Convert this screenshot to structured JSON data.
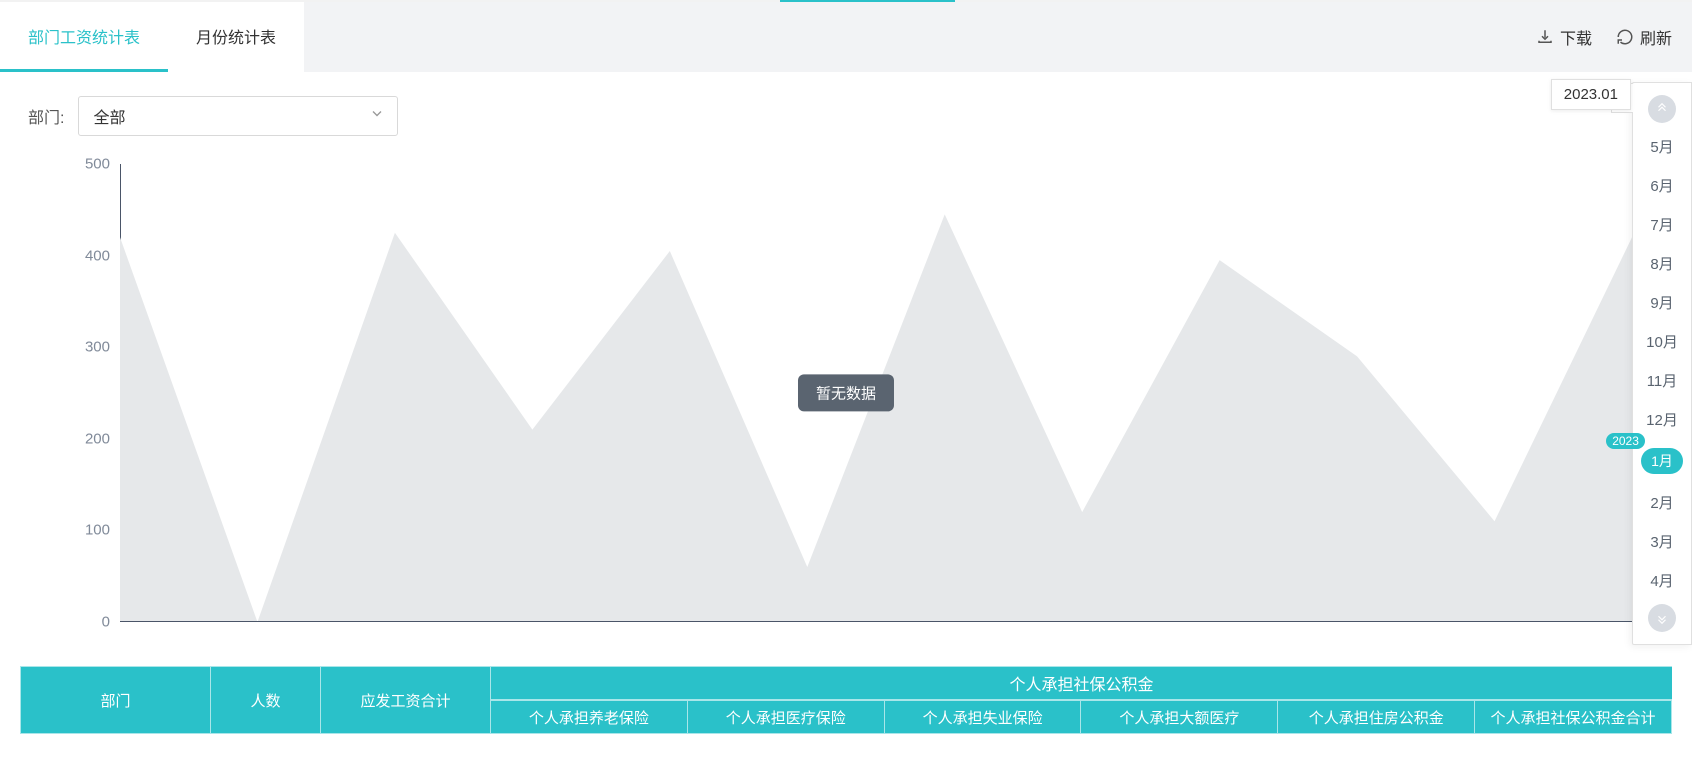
{
  "accent_color": "#2ac1c9",
  "tabs": {
    "items": [
      "部门工资统计表",
      "月份统计表"
    ],
    "active_index": 0
  },
  "actions": {
    "download": "下载",
    "refresh": "刷新"
  },
  "filter": {
    "label": "部门:",
    "select_value": "全部"
  },
  "chart": {
    "type": "area",
    "no_data_label": "暂无数据",
    "y": {
      "min": 0,
      "max": 500,
      "step": 100,
      "ticks": [
        0,
        100,
        200,
        300,
        400,
        500
      ]
    },
    "fill_color": "#e6e8ea",
    "axis_color": "#4a5568",
    "tick_color": "#808a99",
    "tick_fontsize": 15,
    "series_values": [
      420,
      0,
      425,
      210,
      405,
      60,
      445,
      120,
      395,
      290,
      110,
      420
    ],
    "background_color": "#ffffff"
  },
  "table": {
    "header_bg": "#2ac1c9",
    "header_fg": "#ffffff",
    "columns_fixed": [
      "部门",
      "人数",
      "应发工资合计"
    ],
    "group_label": "个人承担社保公积金",
    "group_columns": [
      "个人承担养老保险",
      "个人承担医疗保险",
      "个人承担失业保险",
      "个人承担大额医疗",
      "个人承担住房公积金",
      "个人承担社保公积金合计"
    ]
  },
  "timeline": {
    "current_label": "2023.01",
    "year_tag": "2023",
    "items": [
      {
        "label": "5月",
        "active": false
      },
      {
        "label": "6月",
        "active": false
      },
      {
        "label": "7月",
        "active": false
      },
      {
        "label": "8月",
        "active": false
      },
      {
        "label": "9月",
        "active": false
      },
      {
        "label": "10月",
        "active": false
      },
      {
        "label": "11月",
        "active": false
      },
      {
        "label": "12月",
        "active": false
      },
      {
        "label": "1月",
        "active": true,
        "show_year_tag": true
      },
      {
        "label": "2月",
        "active": false
      },
      {
        "label": "3月",
        "active": false
      },
      {
        "label": "4月",
        "active": false
      }
    ]
  }
}
